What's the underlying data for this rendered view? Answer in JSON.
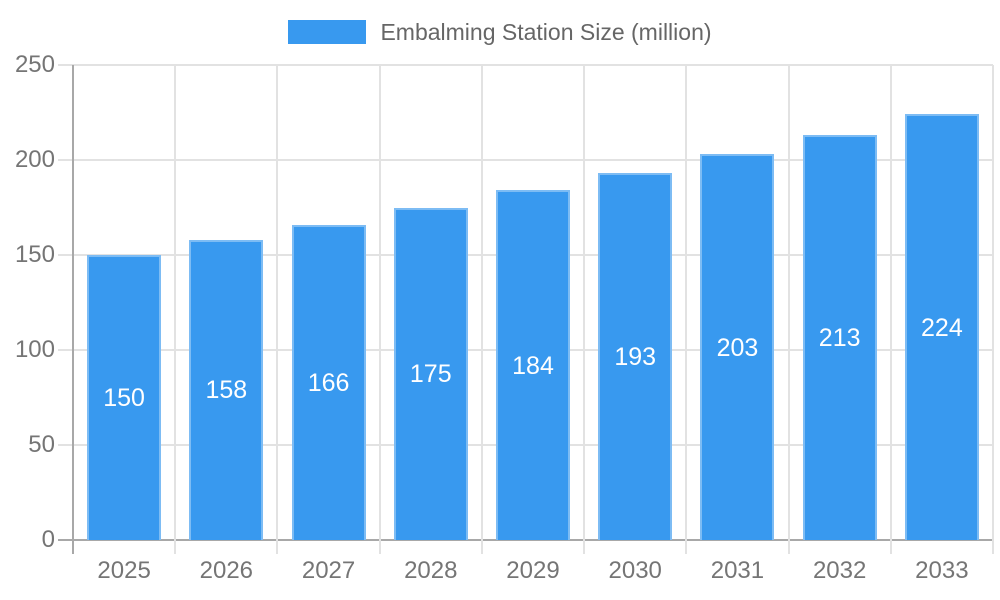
{
  "legend": {
    "label": "Embalming Station Size (million)"
  },
  "chart_data": {
    "type": "bar",
    "title": "",
    "categories": [
      "2025",
      "2026",
      "2027",
      "2028",
      "2029",
      "2030",
      "2031",
      "2032",
      "2033"
    ],
    "series": [
      {
        "name": "Embalming Station Size (million)",
        "values": [
          150,
          158,
          166,
          175,
          184,
          193,
          203,
          213,
          224
        ]
      }
    ],
    "xlabel": "",
    "ylabel": "",
    "ylim": [
      0,
      250
    ],
    "yticks": [
      0,
      50,
      100,
      150,
      200,
      250
    ],
    "grid": true,
    "legend_position": "top",
    "bar_value_labels": true,
    "colors": {
      "bar": "#3899ef",
      "bar_border": "rgba(255,255,255,0.35)",
      "grid": "#e2e2e2",
      "axis": "#a8a8a8",
      "tick_label": "#757575",
      "legend_text": "#666666",
      "bar_label": "#ffffff"
    }
  }
}
